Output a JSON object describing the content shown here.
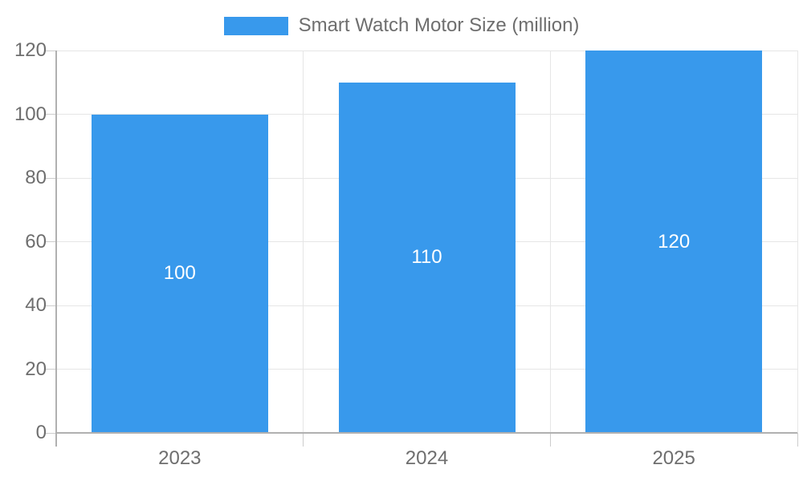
{
  "chart_data": {
    "type": "bar",
    "title": "Smart Watch Motor Size (million)",
    "legend": {
      "label": "Smart Watch Motor Size (million)",
      "position": "top-center"
    },
    "categories": [
      "2023",
      "2024",
      "2025"
    ],
    "series": [
      {
        "name": "Smart Watch Motor Size (million)",
        "values": [
          100,
          110,
          120
        ]
      }
    ],
    "bar_value_labels": [
      "100",
      "110",
      "120"
    ],
    "xlabel": "",
    "ylabel": "",
    "ylim": [
      0,
      120
    ],
    "yticks": [
      0,
      20,
      40,
      60,
      80,
      100,
      120
    ],
    "grid": true,
    "colors": {
      "bar": "#3899ec",
      "grid": "#e6e6e6",
      "axis": "#b0b0b0",
      "tick": "#cccccc",
      "text": "#6e6e6e",
      "bar_label": "#ffffff",
      "background": "#ffffff"
    }
  }
}
